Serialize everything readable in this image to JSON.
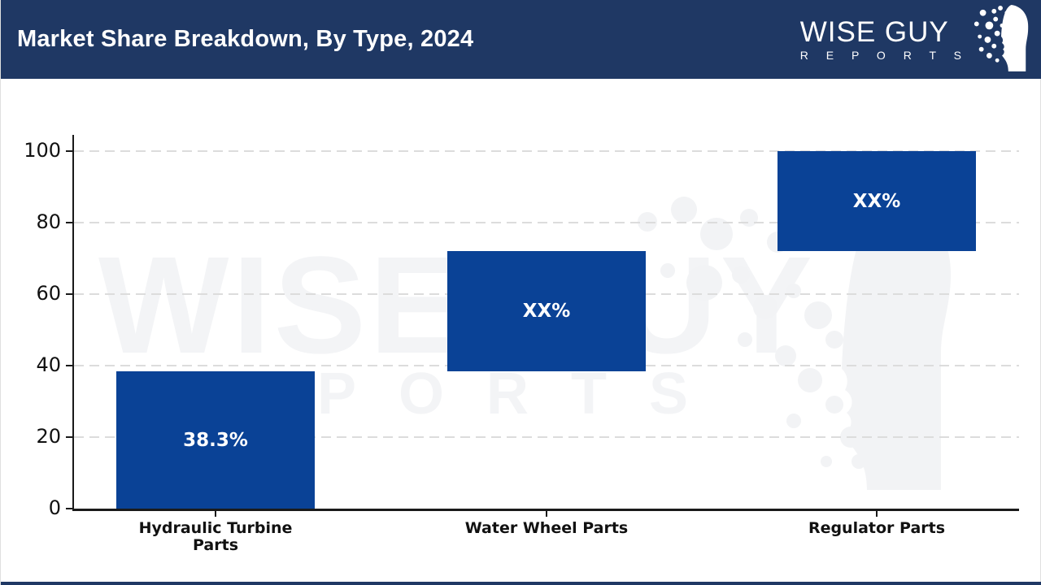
{
  "header": {
    "title": "Market Share Breakdown, By Type, 2024",
    "logo": {
      "line1": "WISE GUY",
      "line2": "R E P O R T S"
    }
  },
  "watermark": {
    "line1": "WISE GUY",
    "line2": "REPORTS"
  },
  "chart_data": {
    "type": "bar",
    "subtype": "waterfall",
    "title": "Market Share Breakdown, By Type, 2024",
    "categories": [
      "Hydraulic Turbine Parts",
      "Water Wheel Parts",
      "Regulator Parts"
    ],
    "segments": [
      {
        "category": "Hydraulic Turbine Parts",
        "start": 0,
        "end": 38.3,
        "label": "38.3%"
      },
      {
        "category": "Water Wheel Parts",
        "start": 38.3,
        "end": 72,
        "label": "XX%"
      },
      {
        "category": "Regulator Parts",
        "start": 72,
        "end": 100,
        "label": "XX%"
      }
    ],
    "ylim": [
      0,
      100
    ],
    "yticks": [
      0,
      20,
      40,
      60,
      80,
      100
    ],
    "xlabel": "",
    "ylabel": "",
    "grid": "horizontal-dashed",
    "legend": "none",
    "bar_color": "#0a4296",
    "value_label_color": "#ffffff"
  },
  "colors": {
    "header_bg": "#1f3864",
    "bar": "#0a4296",
    "grid": "#dcdcdc",
    "axis": "#1a1a1a",
    "watermark": "#f3f4f6",
    "bottom_strip": "#1f3864"
  }
}
